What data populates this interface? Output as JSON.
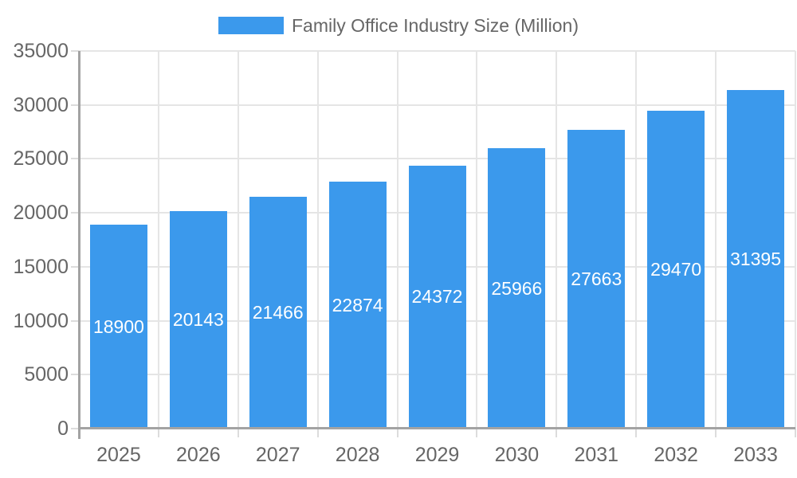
{
  "chart_data": {
    "type": "bar",
    "title": "Family Office Industry Size (Million)",
    "series_name": "Family Office Industry Size (Million)",
    "categories": [
      "2025",
      "2026",
      "2027",
      "2028",
      "2029",
      "2030",
      "2031",
      "2032",
      "2033"
    ],
    "values": [
      18900,
      20143,
      21466,
      22874,
      24372,
      25966,
      27663,
      29470,
      31395
    ],
    "xlabel": "",
    "ylabel": "",
    "ylim": [
      0,
      35000
    ],
    "yticks": [
      0,
      5000,
      10000,
      15000,
      20000,
      25000,
      30000,
      35000
    ],
    "grid": true,
    "legend_position": "top-center",
    "value_labels": "inside-center",
    "colors": {
      "bar": "#3b99ec",
      "value_label": "#ffffff",
      "grid_line": "#e5e5e5",
      "axis_line": "#a3a3a3",
      "tick_text": "#666666",
      "legend_text": "#666666",
      "background": "#ffffff"
    }
  }
}
